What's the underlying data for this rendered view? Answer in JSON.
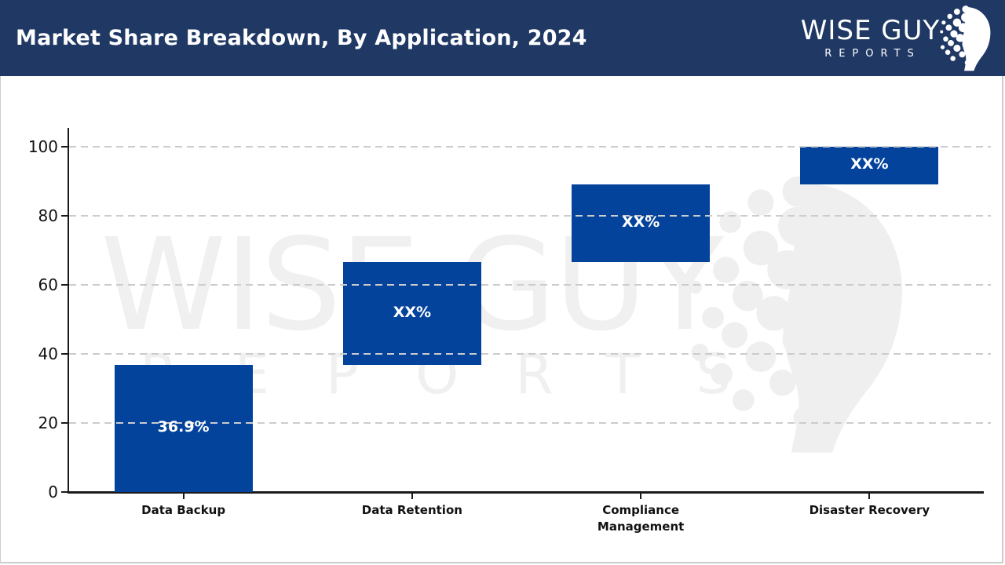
{
  "header": {
    "title": "Market Share Breakdown, By Application, 2024",
    "brand": {
      "wordmark": "WISE GUY",
      "subtext": "REPORTS"
    }
  },
  "watermark": {
    "wordmark": "WISE GUY",
    "subtext": "REPORTS"
  },
  "chart_data": {
    "type": "bar",
    "subtype": "waterfall",
    "title": "Market Share Breakdown, By Application, 2024",
    "categories": [
      "Data Backup",
      "Data Retention",
      "Compliance\nManagement",
      "Disaster Recovery"
    ],
    "series": [
      {
        "name": "Market share by application (%)",
        "segments": [
          {
            "category": "Data Backup",
            "start": 0,
            "end": 36.9,
            "label": "36.9%"
          },
          {
            "category": "Data Retention",
            "start": 36.9,
            "end": 66.5,
            "label": "XX%"
          },
          {
            "category": "Compliance\nManagement",
            "start": 66.5,
            "end": 89.0,
            "label": "XX%"
          },
          {
            "category": "Disaster Recovery",
            "start": 89.0,
            "end": 100,
            "label": "XX%"
          }
        ]
      }
    ],
    "xlabel": "",
    "ylabel": "",
    "ylim": [
      0,
      100
    ],
    "yticks": [
      0,
      20,
      40,
      60,
      80,
      100
    ],
    "grid": {
      "axis": "y",
      "style": "dashed",
      "color": "#cccccc",
      "above_bars": true
    },
    "legend": "none",
    "colors": {
      "bar": "#04439c",
      "bar_label": "#ffffff",
      "axis": "#1a1a1a",
      "tick_label": "#111111",
      "header_bg": "#1f3864",
      "watermark": "#f0f0f0"
    }
  }
}
